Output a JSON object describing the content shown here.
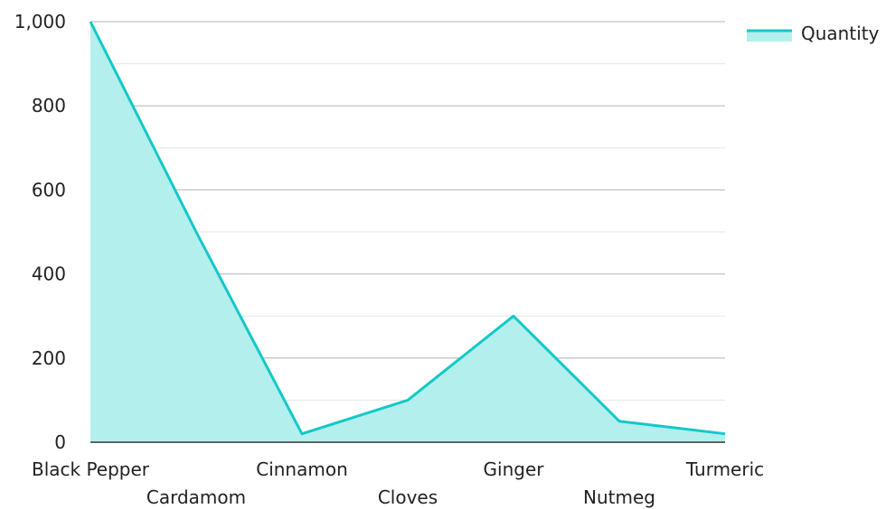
{
  "chart_data": {
    "type": "area",
    "categories": [
      "Black Pepper",
      "Cardamom",
      "Cinnamon",
      "Cloves",
      "Ginger",
      "Nutmeg",
      "Turmeric"
    ],
    "series": [
      {
        "name": "Quantity",
        "values": [
          1000,
          500,
          20,
          100,
          300,
          50,
          20
        ]
      }
    ],
    "ylim": [
      0,
      1000
    ],
    "y_ticks": [
      0,
      200,
      400,
      600,
      800,
      1000
    ],
    "y_tick_labels": [
      "0",
      "200",
      "400",
      "600",
      "800",
      "1,000"
    ],
    "grid": true,
    "legend_position": "top-right",
    "colors": {
      "line": "#14c8c8",
      "fill": "#b3efed",
      "grid_major": "#b4b4b4",
      "grid_minor": "#e6e6e6",
      "axis": "#333333"
    }
  }
}
